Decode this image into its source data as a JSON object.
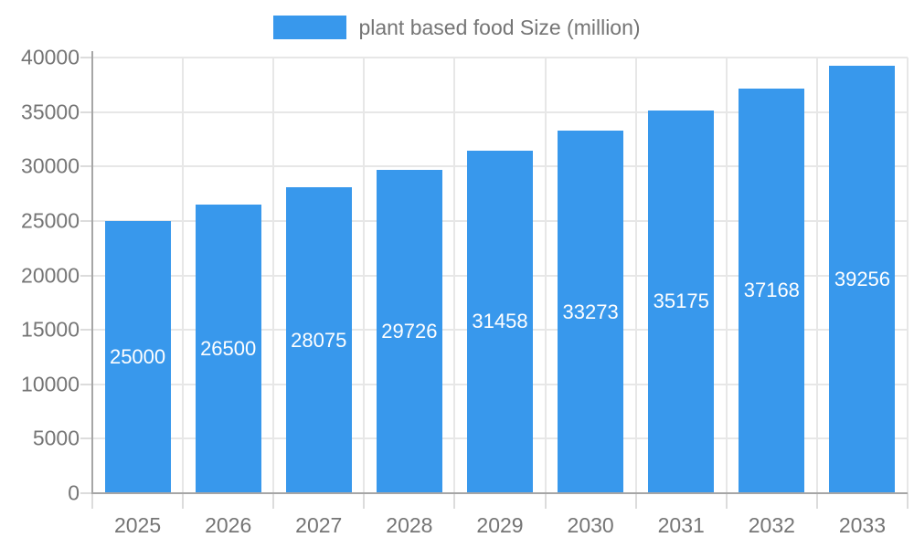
{
  "legend": {
    "label": "plant based food Size (million)"
  },
  "colors": {
    "bar": "#3898ec",
    "axis_text": "#757575",
    "value_label_text": "#ffffff",
    "gridline": "#e7e7e7",
    "tick": "#dcdcdc",
    "axis_line": "#a6a6a6",
    "background": "#ffffff"
  },
  "chart_data": {
    "type": "bar",
    "title": "",
    "categories": [
      "2025",
      "2026",
      "2027",
      "2028",
      "2029",
      "2030",
      "2031",
      "2032",
      "2033"
    ],
    "series": [
      {
        "name": "plant based food Size (million)",
        "values": [
          25000,
          26500,
          28075,
          29726,
          31458,
          33273,
          35175,
          37168,
          39256
        ]
      }
    ],
    "xlabel": "",
    "ylabel": "",
    "ylim": [
      0,
      40000
    ],
    "yticks": [
      0,
      5000,
      10000,
      15000,
      20000,
      25000,
      30000,
      35000,
      40000
    ],
    "ytick_labels": [
      "0",
      "5000",
      "10000",
      "15000",
      "20000",
      "25000",
      "30000",
      "35000",
      "40000"
    ],
    "grid": true,
    "legend_position": "top-center",
    "value_label_position": "inside-center"
  }
}
